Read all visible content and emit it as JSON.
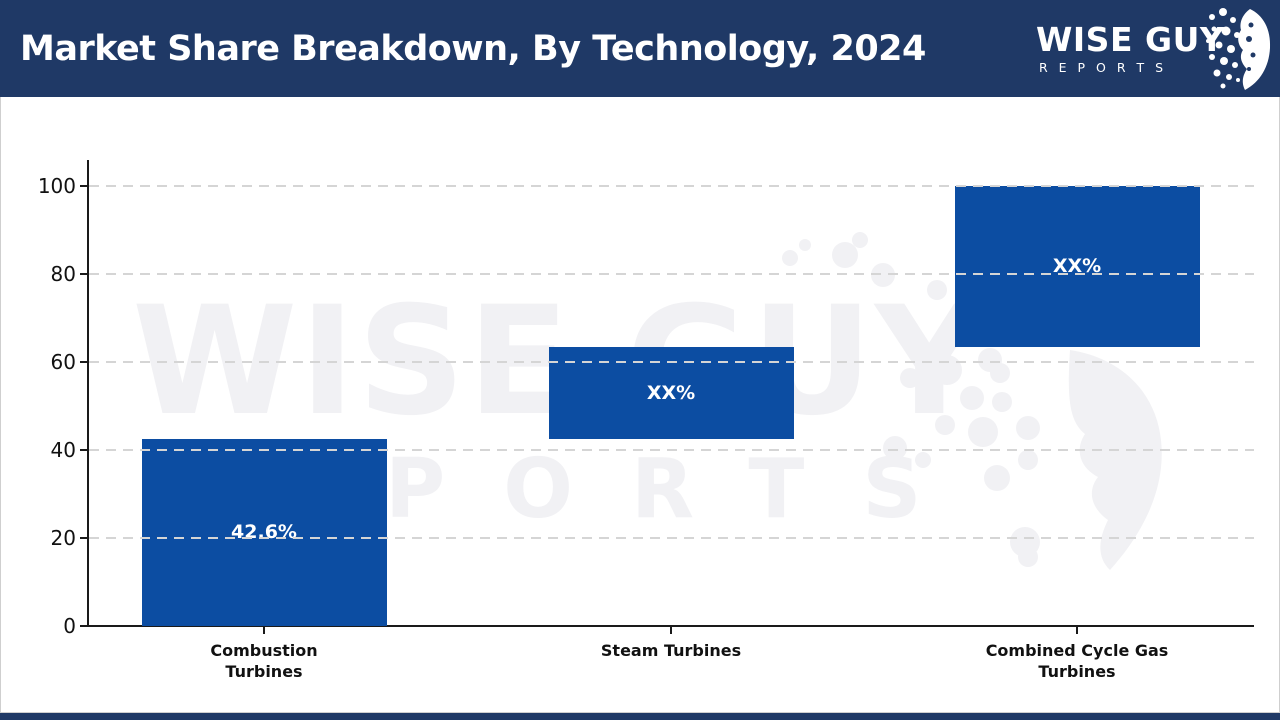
{
  "header": {
    "title": "Market Share Breakdown, By Technology, 2024",
    "logo": {
      "line1": "WISE GUY",
      "line2": "R E P O R T S"
    }
  },
  "watermark": {
    "line1": "WISE GUY",
    "line2": "REPORTS"
  },
  "chart_data": {
    "type": "bar",
    "subtype": "floating-segment-waterfall",
    "title": "Market Share Breakdown, By Technology, 2024",
    "xlabel": "",
    "ylabel": "",
    "ylim": [
      0,
      100
    ],
    "yticks": [
      0,
      20,
      40,
      60,
      80,
      100
    ],
    "grid": "horizontal-dashed",
    "legend": "none",
    "categories": [
      [
        "Combustion",
        "Turbines"
      ],
      [
        "Steam Turbines"
      ],
      [
        "Combined Cycle Gas",
        "Turbines"
      ]
    ],
    "bars": [
      {
        "name": "Combustion Turbines",
        "start": 0,
        "end": 42.6,
        "value": 42.6,
        "label": "42.6%"
      },
      {
        "name": "Steam Turbines",
        "start": 42.6,
        "end": 63.5,
        "value": 20.9,
        "label": "XX%"
      },
      {
        "name": "Combined Cycle Gas Turbines",
        "start": 63.5,
        "end": 100,
        "value": 36.5,
        "label": "XX%"
      }
    ],
    "bar_color": "#0C4DA2",
    "bar_label_color": "#FFFFFF"
  },
  "colors": {
    "header_bg": "#1F3966",
    "bar": "#0C4DA2",
    "grid": "#D5D5D5",
    "axis": "#1A1A1A",
    "tick_text": "#111111",
    "watermark": "#F1F1F4",
    "title_text": "#FFFFFF"
  }
}
